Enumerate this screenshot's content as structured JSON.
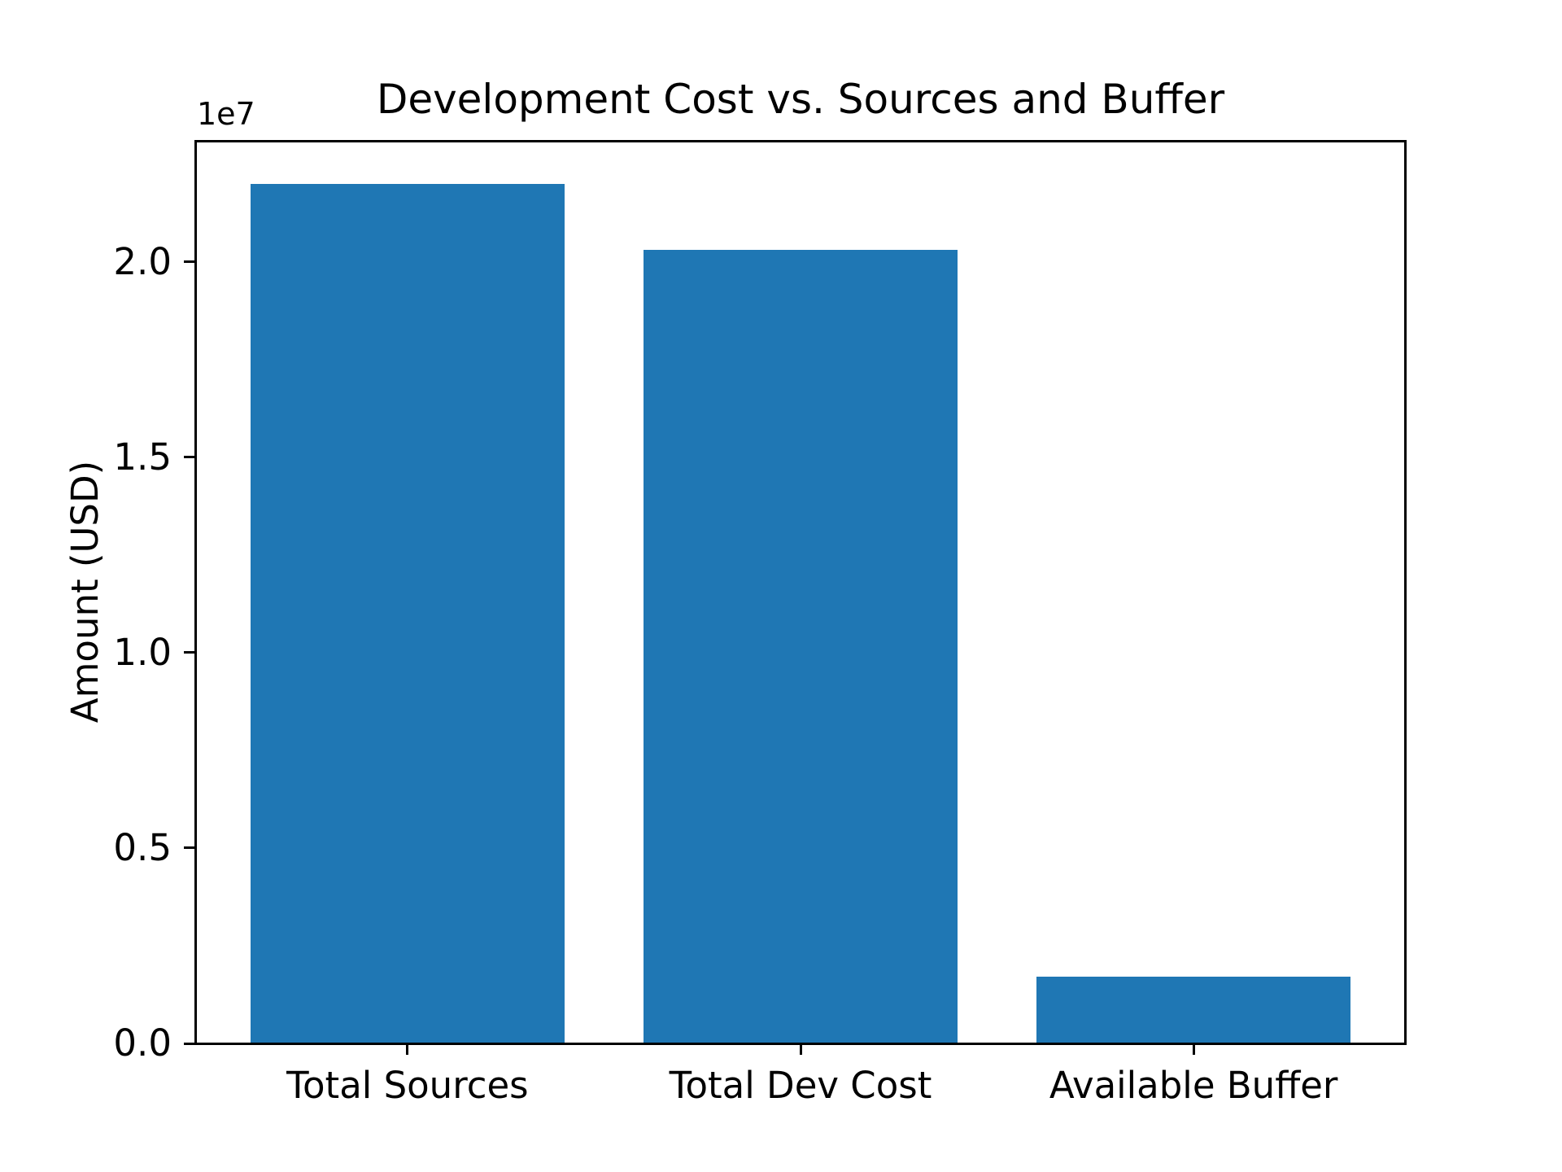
{
  "chart_data": {
    "type": "bar",
    "title": "Development Cost vs. Sources and Buffer",
    "xlabel": "",
    "ylabel": "Amount (USD)",
    "categories": [
      "Total Sources",
      "Total Dev Cost",
      "Available Buffer"
    ],
    "values": [
      22000000,
      20300000,
      1700000
    ],
    "bar_color": "#1f77b4",
    "ylim": [
      0,
      23100000
    ],
    "xlim": [
      -0.54,
      2.54
    ],
    "bar_width": 0.8,
    "yticks": [
      0,
      5000000,
      10000000,
      15000000,
      20000000
    ],
    "ytick_labels": [
      "0.0",
      "0.5",
      "1.0",
      "1.5",
      "2.0"
    ],
    "offset_text": "1e7",
    "grid": false,
    "legend": "none",
    "axis_color": "#000000",
    "background_color": "#ffffff"
  }
}
